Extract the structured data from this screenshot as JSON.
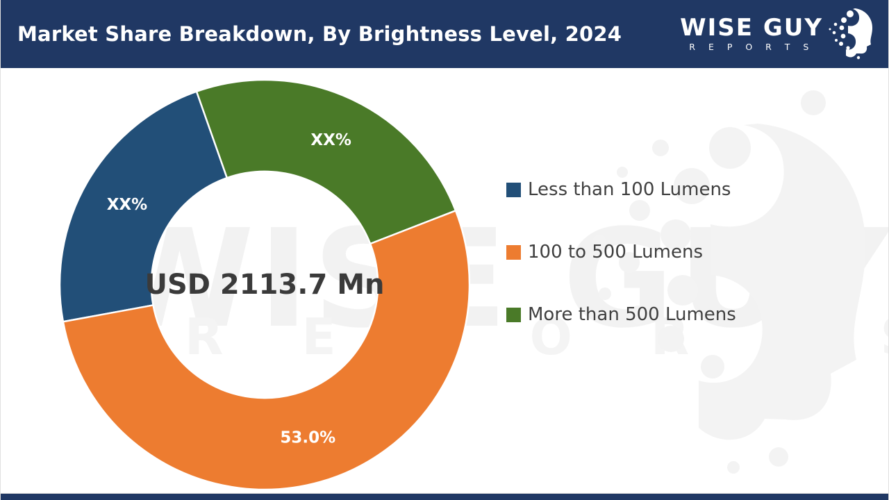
{
  "header": {
    "title": "Market Share Breakdown, By Brightness Level, 2024",
    "bg_color": "#203864",
    "logo": {
      "line1": "WISE GUY",
      "line2": "R E P O R T S"
    }
  },
  "watermark": {
    "line1": "WISE GUY",
    "line2": "R E P O R T S"
  },
  "chart_data": {
    "type": "pie",
    "subtype": "donut",
    "title": "Market Share Breakdown, By Brightness Level, 2024",
    "center_label": "USD 2113.7 Mn",
    "start_angle_deg": 259.6,
    "draw_order": [
      0,
      2,
      1
    ],
    "inner_radius_ratio": 0.553,
    "label_radius_ratio": 0.776,
    "separator_color": "#ffffff",
    "legend_position": "right",
    "categories": [
      "Less than 100 Lumens",
      "100 to 500 Lumens",
      "More than 500 Lumens"
    ],
    "slices": [
      {
        "label": "Less than 100 Lumens",
        "value": 22.5,
        "display": "XX%",
        "color": "#224F78"
      },
      {
        "label": "100 to 500 Lumens",
        "value": 53.0,
        "display": "53.0%",
        "color": "#ED7C30"
      },
      {
        "label": "More than 500 Lumens",
        "value": 24.5,
        "display": "XX%",
        "color": "#4A7A28"
      }
    ]
  },
  "footer": {
    "bg_color": "#203864"
  }
}
